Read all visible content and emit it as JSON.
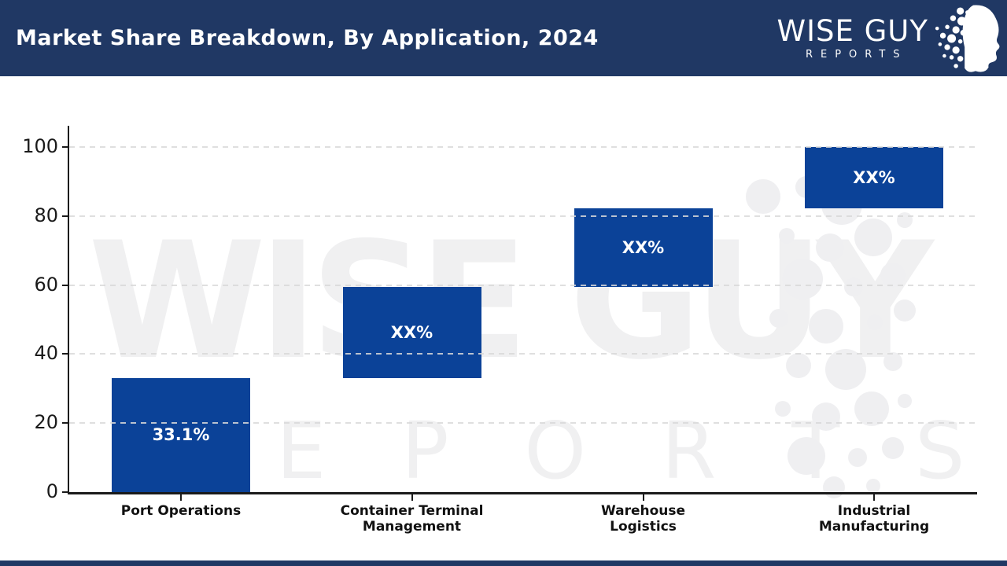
{
  "header": {
    "title": "Market Share Breakdown, By Application, 2024",
    "bg_color": "#203864",
    "text_color": "#ffffff",
    "logo": {
      "line1": "WISE GUY",
      "line2": "REPORTS"
    }
  },
  "watermark": {
    "line1": "WISE GUY",
    "line2": "R E P O R T S",
    "color": "#f0f0f1"
  },
  "footer": {
    "bg_color": "#203864"
  },
  "chart_data": {
    "type": "bar",
    "subtype": "waterfall",
    "title": "Market Share Breakdown, By Application, 2024",
    "categories": [
      "Port Operations",
      "Container Terminal\nManagement",
      "Warehouse\nLogistics",
      "Industrial\nManufacturing"
    ],
    "segments": [
      {
        "category": "Port Operations",
        "start": 0,
        "end": 33.1,
        "label": "33.1%"
      },
      {
        "category": "Container Terminal Management",
        "start": 33.1,
        "end": 59.5,
        "label": "XX%"
      },
      {
        "category": "Warehouse Logistics",
        "start": 59.5,
        "end": 82.3,
        "label": "XX%"
      },
      {
        "category": "Industrial Manufacturing",
        "start": 82.3,
        "end": 100,
        "label": "XX%"
      }
    ],
    "ylim": [
      0,
      100
    ],
    "yticks": [
      0,
      20,
      40,
      60,
      80,
      100
    ],
    "xlabel": "",
    "ylabel": "",
    "grid": "horizontal-dashed",
    "legend": "none",
    "bar_color": "#0b4298",
    "bar_label_color": "#ffffff",
    "grid_color": "#d9d9d9",
    "axis_color": "#1a1a1a"
  }
}
